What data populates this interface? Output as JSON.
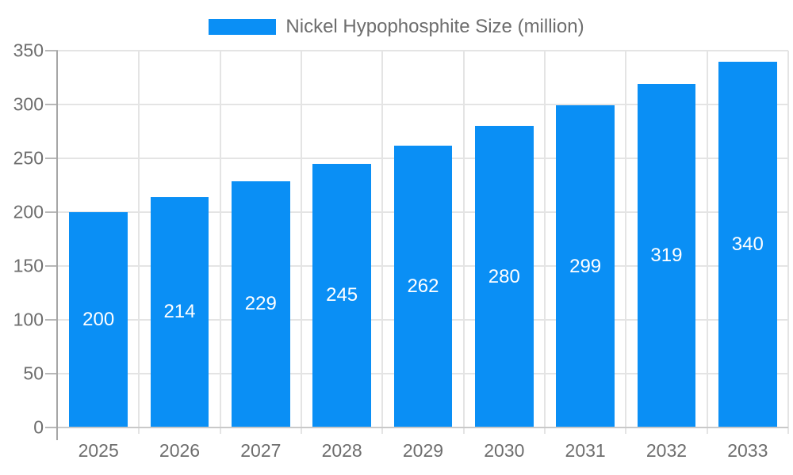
{
  "legend": {
    "items": [
      {
        "label": "Nickel Hypophosphite Size (million)",
        "swatch_color": "#0a8ff5"
      }
    ]
  },
  "chart_data": {
    "type": "bar",
    "title": "",
    "xlabel": "",
    "ylabel": "",
    "categories": [
      "2025",
      "2026",
      "2027",
      "2028",
      "2029",
      "2030",
      "2031",
      "2032",
      "2033"
    ],
    "series": [
      {
        "name": "Nickel Hypophosphite Size (million)",
        "color": "#0a8ff5",
        "values": [
          200,
          214,
          229,
          245,
          262,
          280,
          299,
          319,
          340
        ]
      }
    ],
    "value_labels": {
      "position": "inside-center",
      "color": "#ffffff"
    },
    "ylim": [
      0,
      350
    ],
    "yticks": [
      0,
      50,
      100,
      150,
      200,
      250,
      300,
      350
    ],
    "grid": true,
    "legend_position": "top-center"
  },
  "styles": {
    "bar_color": "#0a8ff5",
    "axis_text_color": "#6d6d6d",
    "grid_color": "#e4e4e4",
    "axis_line_color": "#a6a6a6",
    "baseline_color": "#c9c9c9",
    "tick_color": "#b8b8b8",
    "value_text_color": "#ffffff",
    "background": "#ffffff"
  }
}
